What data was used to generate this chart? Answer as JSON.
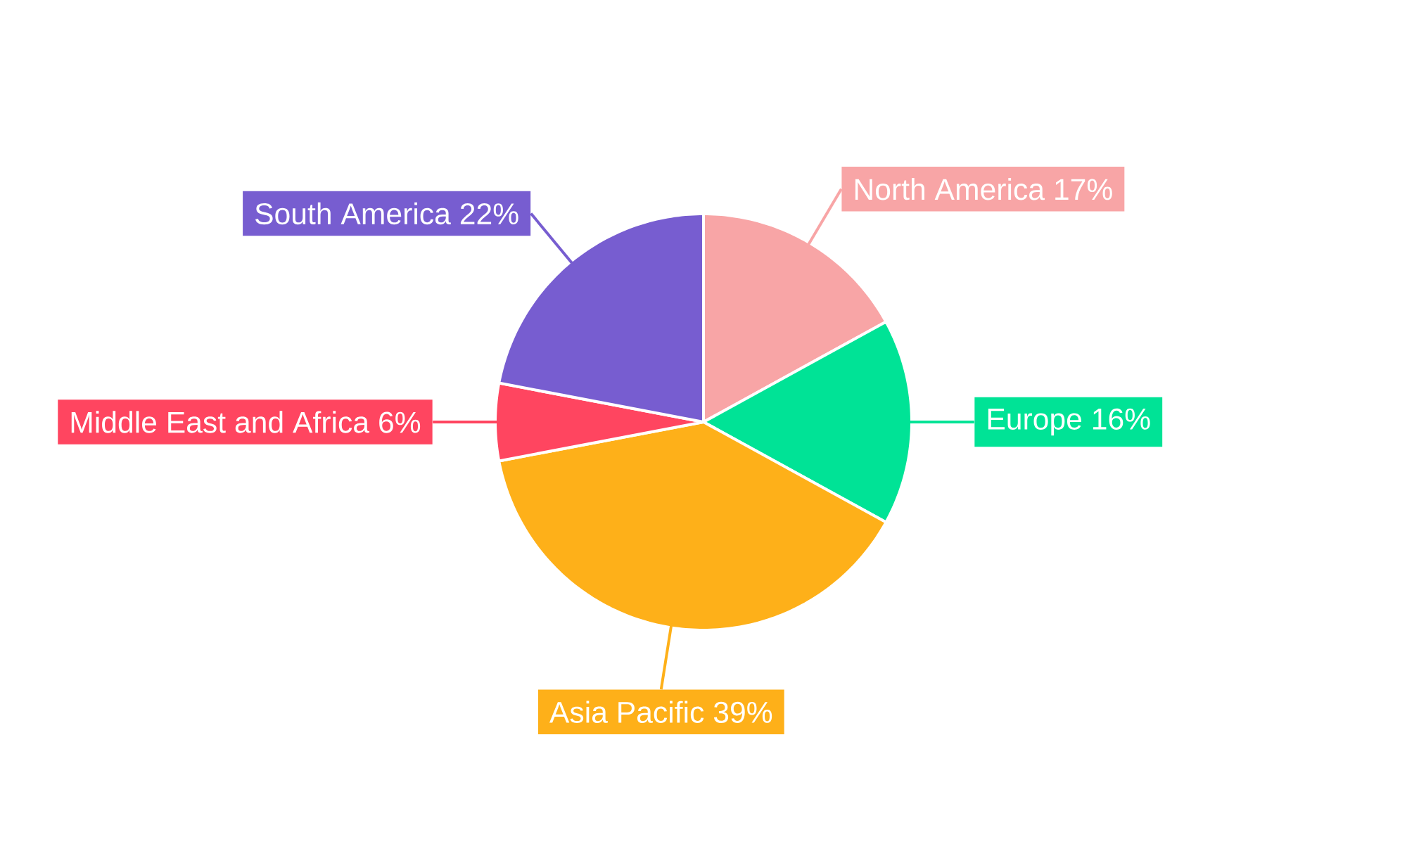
{
  "chart_data": {
    "type": "pie",
    "categories": [
      "North America",
      "Europe",
      "Asia Pacific",
      "Middle East and Africa",
      "South America"
    ],
    "values": [
      17,
      16,
      39,
      6,
      22
    ],
    "value_labels": [
      "17%",
      "16%",
      "39%",
      "6%",
      "22%"
    ],
    "colors": [
      "#f8a5a6",
      "#00e396",
      "#feb019",
      "#ff4560",
      "#775dd0"
    ]
  }
}
